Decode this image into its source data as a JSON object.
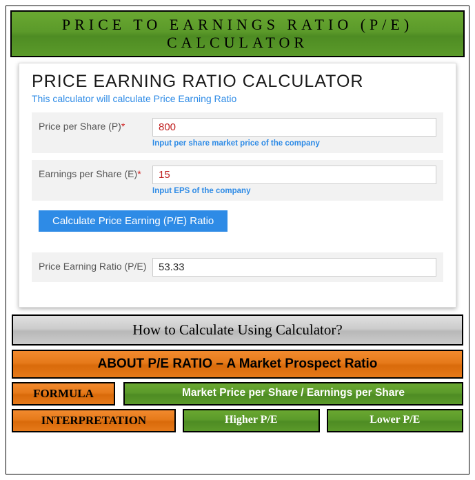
{
  "header": {
    "title": "PRICE TO EARNINGS RATIO (P/E) CALCULATOR"
  },
  "calculator": {
    "title": "PRICE EARNING RATIO CALCULATOR",
    "subtitle": "This calculator will calculate Price Earning Ratio",
    "fields": {
      "price": {
        "label": "Price per Share (P)",
        "required": "*",
        "value": "800",
        "hint": "Input per share market price of the company"
      },
      "eps": {
        "label": "Earnings per Share (E)",
        "required": "*",
        "value": "15",
        "hint": "Input EPS of the company"
      },
      "result": {
        "label": "Price Earning Ratio (P/E)",
        "value": "53.33"
      }
    },
    "button": "Calculate Price Earning (P/E) Ratio"
  },
  "howto": "How to Calculate Using Calculator?",
  "about": "ABOUT P/E RATIO – A Market Prospect Ratio",
  "formula": {
    "label": "FORMULA",
    "value": "Market Price per Share / Earnings per Share"
  },
  "interpretation": {
    "label": "INTERPRETATION",
    "higher": "Higher P/E",
    "lower": "Lower P/E"
  },
  "colors": {
    "green_grad": [
      "#6aa831",
      "#4e8c23"
    ],
    "orange_grad": [
      "#f28a2e",
      "#d96a0a"
    ],
    "gray_grad": [
      "#e0e0e0",
      "#b8b8b8"
    ],
    "link_blue": "#2e8be6",
    "input_red": "#c02020"
  }
}
